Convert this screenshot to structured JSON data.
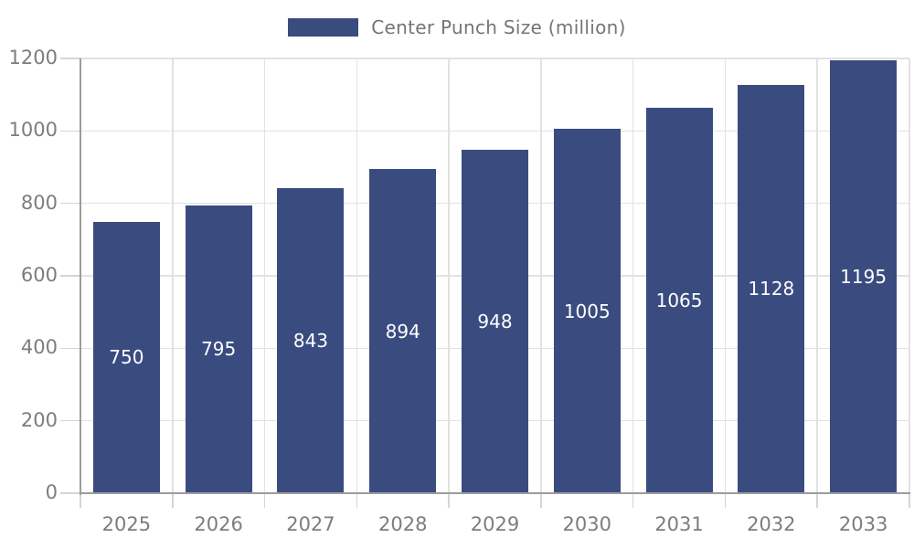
{
  "legend": {
    "label": "Center Punch Size (million)"
  },
  "chart_data": {
    "type": "bar",
    "title": "",
    "categories": [
      "2025",
      "2026",
      "2027",
      "2028",
      "2029",
      "2030",
      "2031",
      "2032",
      "2033"
    ],
    "series": [
      {
        "name": "Center Punch Size (million)",
        "values": [
          750,
          795,
          843,
          894,
          948,
          1005,
          1065,
          1128,
          1195
        ]
      }
    ],
    "xlabel": "",
    "ylabel": "",
    "ylim": [
      0,
      1200
    ],
    "yticks": [
      0,
      200,
      400,
      600,
      800,
      1000,
      1200
    ],
    "grid": true,
    "legend_position": "top-center",
    "bar_value_labels": "inside-center"
  },
  "colors": {
    "bar": "#3A4C7F",
    "bar_label": "#FFFFFF",
    "axis_line": "#9C9C9C",
    "grid_line": "#E2E2E2",
    "tick_mark": "#D5D5D5",
    "tick_label": "#7D7D7D",
    "legend_text": "#757575",
    "background": "#FFFFFF"
  }
}
